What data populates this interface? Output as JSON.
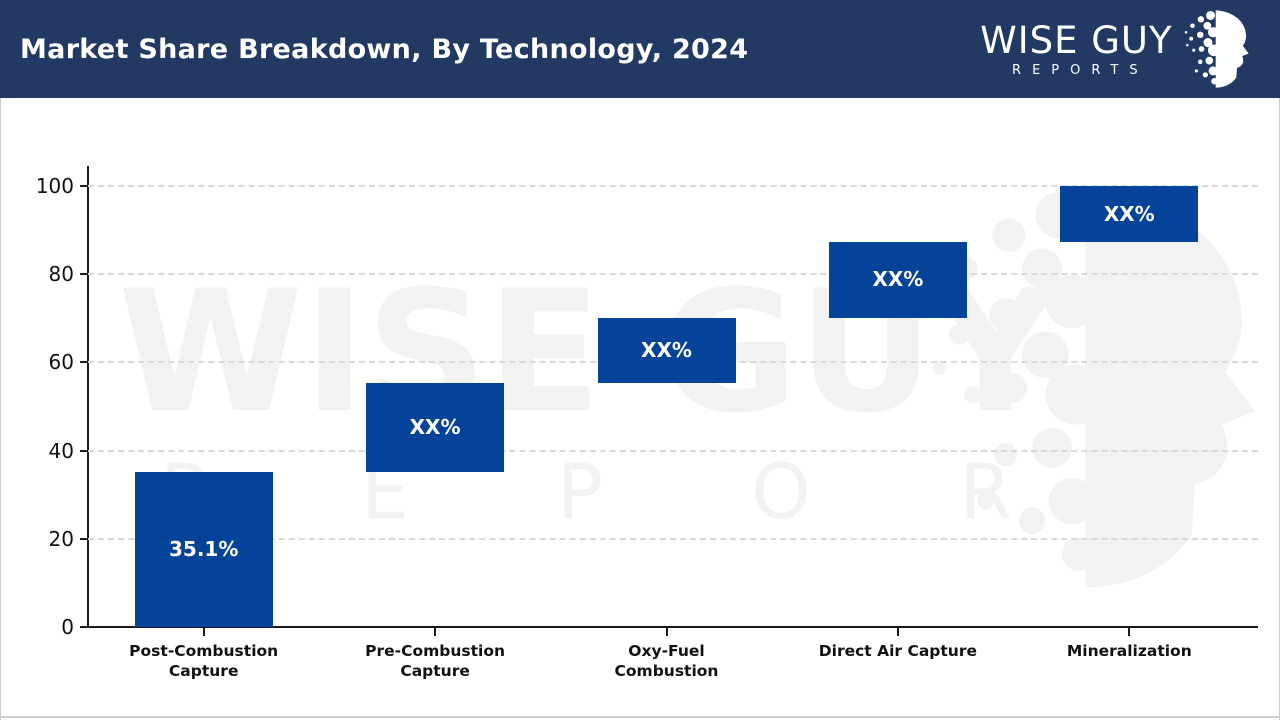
{
  "header": {
    "title": "Market Share Breakdown, By Technology, 2024",
    "background_color": "#213963",
    "logo": {
      "line1": "WISE GUY",
      "line2": "REPORTS"
    }
  },
  "watermark": {
    "line1": "WISE GUY",
    "line2": "R E P O R T S"
  },
  "chart_data": {
    "type": "bar",
    "subtype": "waterfall",
    "title": "Market Share Breakdown, By Technology, 2024",
    "xlabel": "",
    "ylabel": "",
    "categories": [
      "Post-Combustion\nCapture",
      "Pre-Combustion\nCapture",
      "Oxy-Fuel\nCombustion",
      "Direct Air Capture",
      "Mineralization"
    ],
    "segments": [
      {
        "start": 0,
        "end": 35.1,
        "label": "35.1%"
      },
      {
        "start": 35.1,
        "end": 55.3,
        "label": "XX%"
      },
      {
        "start": 55.3,
        "end": 70.1,
        "label": "XX%"
      },
      {
        "start": 70.1,
        "end": 87.3,
        "label": "XX%"
      },
      {
        "start": 87.3,
        "end": 100,
        "label": "XX%"
      }
    ],
    "yticks": [
      0,
      20,
      40,
      60,
      80,
      100
    ],
    "ylim": [
      0,
      100
    ],
    "bar_color": "#04439a",
    "bar_label_color": "#ffffff",
    "grid": "horizontal dashed, on",
    "legend": "none"
  }
}
